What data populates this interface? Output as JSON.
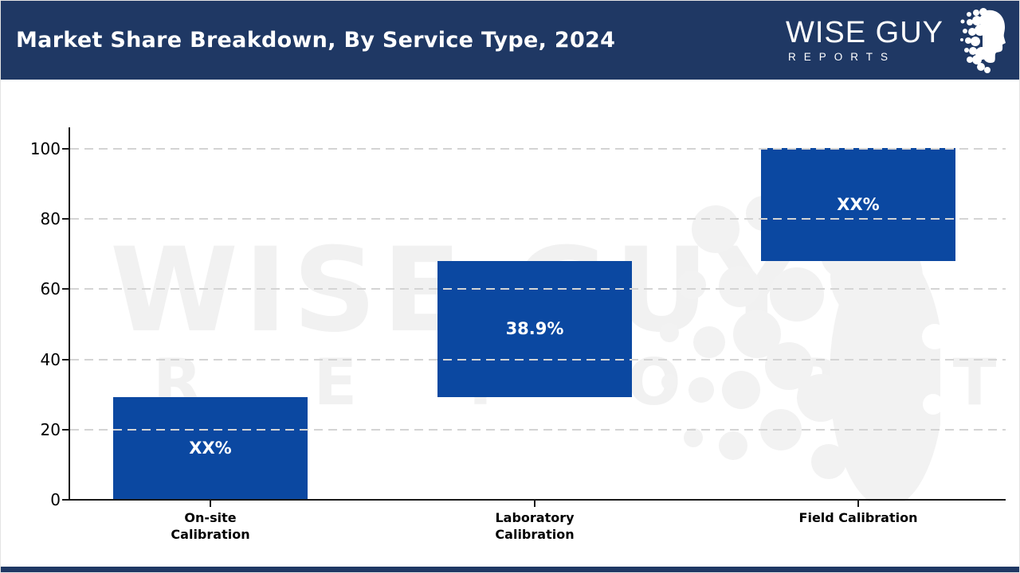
{
  "page": {
    "background": "#ffffff",
    "accent_navy": "#1f3864",
    "watermark_color": "#f1f1f1"
  },
  "header": {
    "title": "Market Share Breakdown, By Service Type, 2024",
    "logo_line1": "WISE GUY",
    "logo_line2": "REPORTS"
  },
  "watermark": {
    "line1": "WISE GUY",
    "line2": "R E P O R T S"
  },
  "chart_data": {
    "type": "bar",
    "subtype": "waterfall",
    "title": "Market Share Breakdown, By Service Type, 2024",
    "categories": [
      [
        "On-site",
        "Calibration"
      ],
      [
        "Laboratory",
        "Calibration"
      ],
      [
        "Field Calibration"
      ]
    ],
    "bars": [
      {
        "category": "On-site Calibration",
        "start": 0,
        "end": 29.0,
        "label": "XX%"
      },
      {
        "category": "Laboratory Calibration",
        "start": 29.0,
        "end": 67.9,
        "value": 38.9,
        "label": "38.9%"
      },
      {
        "category": "Field Calibration",
        "start": 67.9,
        "end": 100.0,
        "label": "XX%"
      }
    ],
    "yticks": [
      0,
      20,
      40,
      60,
      80,
      100
    ],
    "ylim": [
      0,
      105
    ],
    "bar_color": "#0b48a1",
    "grid": {
      "axis": "y",
      "style": "dashed",
      "color": "#d4d4d4",
      "drawn_above_bars": true
    },
    "legend_position": "none"
  }
}
